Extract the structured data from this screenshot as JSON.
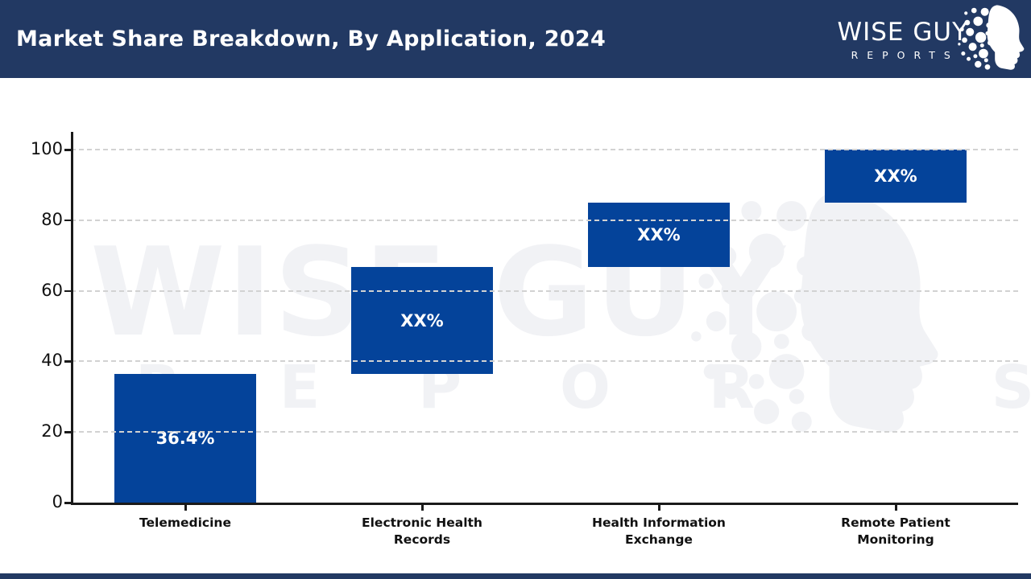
{
  "header": {
    "title": "Market Share Breakdown, By Application, 2024",
    "logo": {
      "name": "WISE GUY",
      "subtitle": "REPORTS"
    }
  },
  "watermark": {
    "line1": "WISE GUY",
    "line2": "R E P O R T S"
  },
  "colors": {
    "header_bg": "#223963",
    "footer_bg": "#223963",
    "bar_blue": "#04439a",
    "bar_label_text": "#ffffff",
    "grid_line": "#d2d2d2",
    "axis_line": "#1a1a1a",
    "watermark_gray": "#f1f2f5"
  },
  "chart_data": {
    "type": "bar",
    "subtype": "waterfall-breakdown",
    "title": "Market Share Breakdown, By Application, 2024",
    "categories": [
      "Telemedicine",
      "Electronic Health\nRecords",
      "Health Information\nExchange",
      "Remote Patient\nMonitoring"
    ],
    "series": [
      {
        "name": "Market share segment",
        "starts": [
          0,
          36.4,
          66.7,
          85
        ],
        "ends": [
          36.4,
          66.7,
          85,
          100
        ]
      }
    ],
    "bar_labels": [
      "36.4%",
      "XX%",
      "XX%",
      "XX%"
    ],
    "yticks": [
      0,
      20,
      40,
      60,
      80,
      100
    ],
    "ylim": [
      0,
      105
    ],
    "xlabel": "",
    "ylabel": "",
    "grid": "horizontal-dashed",
    "legend": "none"
  }
}
